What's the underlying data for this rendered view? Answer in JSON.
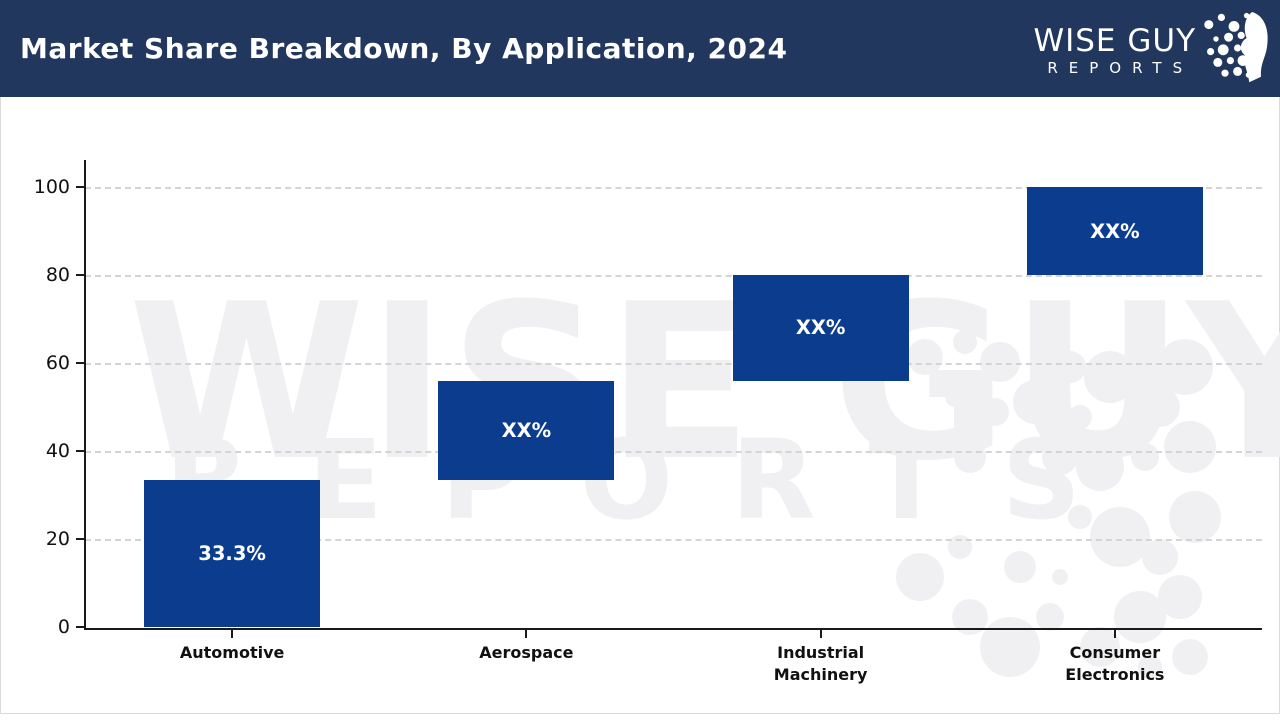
{
  "header": {
    "title": "Market Share Breakdown, By Application, 2024",
    "logo": {
      "line1": "WISE GUY",
      "line2": "REPORTS"
    }
  },
  "watermark": {
    "line1": "WISE GUY",
    "line2": "REPORTS"
  },
  "chart_data": {
    "type": "bar",
    "subtype": "waterfall-stepped-market-share",
    "title": "Market Share Breakdown, By Application, 2024",
    "categories": [
      "Automotive",
      "Aerospace",
      "Industrial Machinery",
      "Consumer Electronics"
    ],
    "segments": [
      {
        "category": "Automotive",
        "start": 0,
        "end": 33.3,
        "label": "33.3%"
      },
      {
        "category": "Aerospace",
        "start": 33.3,
        "end": 56,
        "label": "XX%"
      },
      {
        "category": "Industrial Machinery",
        "start": 56,
        "end": 80,
        "label": "XX%"
      },
      {
        "category": "Consumer Electronics",
        "start": 80,
        "end": 100,
        "label": "XX%"
      }
    ],
    "ylim": [
      0,
      100
    ],
    "yticks": [
      0,
      20,
      40,
      60,
      80,
      100
    ],
    "xlabel": "",
    "ylabel": "",
    "grid": "horizontal-dashed",
    "legend": "none",
    "colors": {
      "bar": "#0b3c8e",
      "bar_label": "#ffffff",
      "axis": "#1a1a1a",
      "gridline": "#d4d4d4",
      "header_bg": "#22375e",
      "watermark": "#f0f0f3"
    }
  }
}
